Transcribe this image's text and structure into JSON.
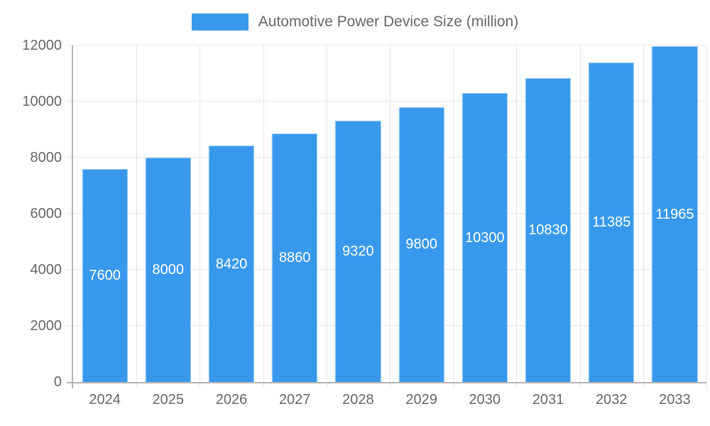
{
  "chart_data": {
    "type": "bar",
    "title": "",
    "legend": {
      "label": "Automotive Power Device Size (million)",
      "position": "top"
    },
    "categories": [
      "2024",
      "2025",
      "2026",
      "2027",
      "2028",
      "2029",
      "2030",
      "2031",
      "2032",
      "2033"
    ],
    "series": [
      {
        "name": "Automotive Power Device Size (million)",
        "values": [
          7600,
          8000,
          8420,
          8860,
          9320,
          9800,
          10300,
          10830,
          11385,
          11965
        ]
      }
    ],
    "value_labels": [
      "7600",
      "8000",
      "8420",
      "8860",
      "9320",
      "9800",
      "10300",
      "10830",
      "11385",
      "11965"
    ],
    "xlabel": "",
    "ylabel": "",
    "ylim": [
      0,
      12000
    ],
    "ytick_step": 2000,
    "yticks": [
      "0",
      "2000",
      "4000",
      "6000",
      "8000",
      "10000",
      "12000"
    ],
    "grid": true,
    "colors": {
      "bar": "#3899EC",
      "bar_border": "#9CCEF4",
      "grid": "#E5E5E5",
      "axis": "#B3B3B3",
      "tick_text": "#666666",
      "value_label": "#FFFFFF"
    }
  }
}
